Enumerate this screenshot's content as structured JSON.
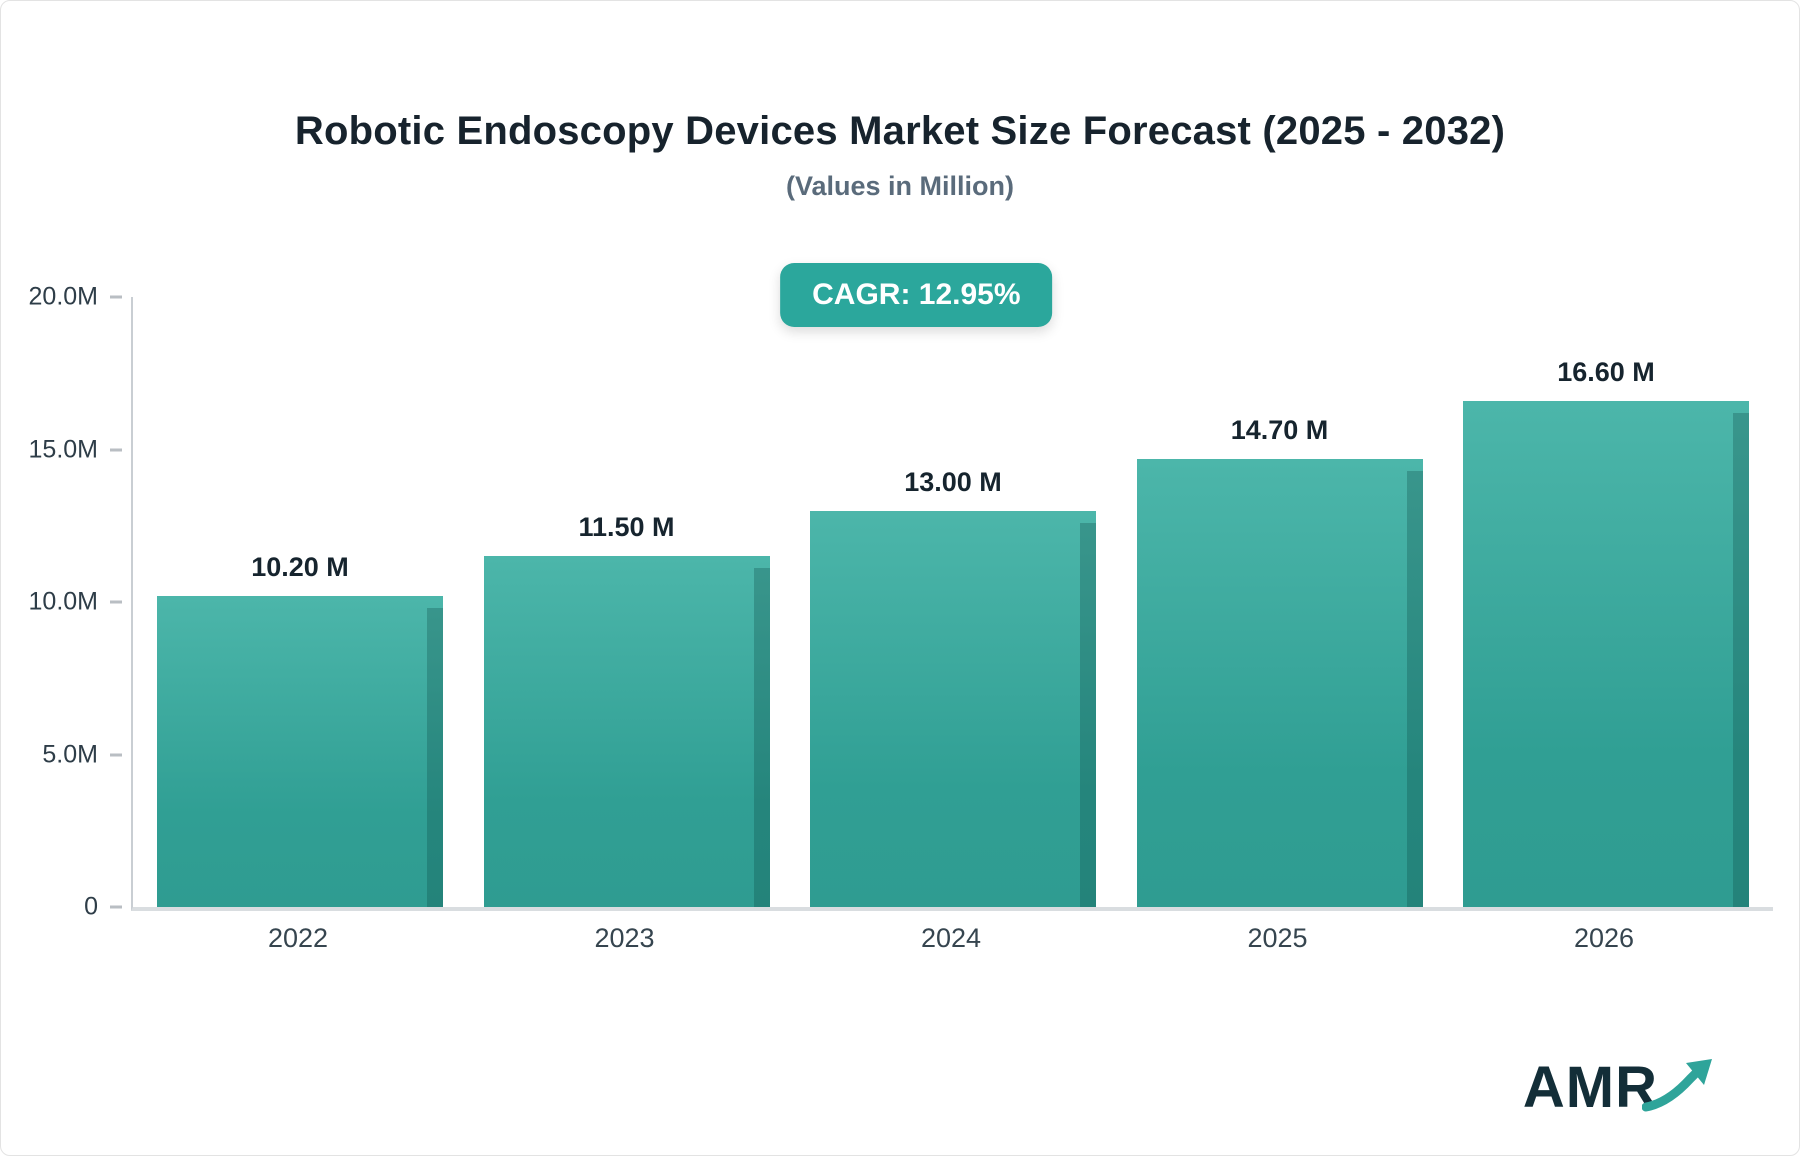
{
  "header": {
    "title": "Robotic Endoscopy Devices Market Size Forecast (2025 - 2032)",
    "subtitle": "(Values in Million)"
  },
  "badge": {
    "label": "CAGR: 12.95%"
  },
  "chart_data": {
    "type": "bar",
    "title": "Robotic Endoscopy Devices Market Size Forecast (2025 - 2032)",
    "subtitle": "(Values in Million)",
    "categories": [
      "2022",
      "2023",
      "2024",
      "2025",
      "2026"
    ],
    "values": [
      10.2,
      11.5,
      13.0,
      14.7,
      16.6
    ],
    "value_labels": [
      "10.20 M",
      "11.50 M",
      "13.00 M",
      "14.70 M",
      "16.60 M"
    ],
    "xlabel": "",
    "ylabel": "",
    "ylim": [
      0,
      20
    ],
    "yticks": [
      {
        "label": "0",
        "value": 0
      },
      {
        "label": "5.0M",
        "value": 5
      },
      {
        "label": "10.0M",
        "value": 10
      },
      {
        "label": "15.0M",
        "value": 15
      },
      {
        "label": "20.0M",
        "value": 20
      }
    ],
    "grid": false,
    "legend": false,
    "bar_color": "#35a79c",
    "bar_edge_color": "#1f7d74",
    "badge_color": "#2ba79c"
  },
  "logo": {
    "text": "AMR",
    "arrow_icon": "trend-up-arrow",
    "accent_color": "#2fa49a"
  }
}
